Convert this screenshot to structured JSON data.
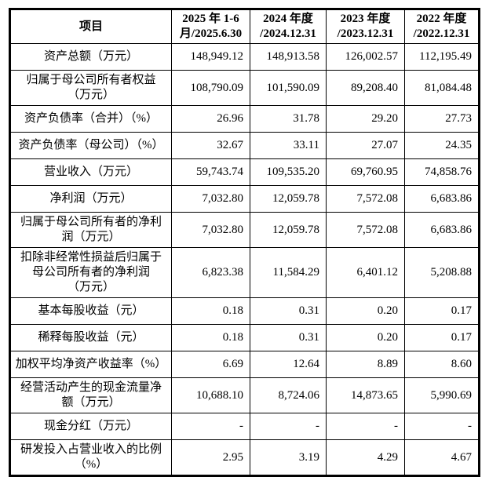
{
  "table": {
    "header": {
      "item_label": "项目",
      "periods": [
        {
          "line1": "2025 年 1-6",
          "line2": "月/2025.6.30"
        },
        {
          "line1": "2024 年度",
          "line2": "/2024.12.31"
        },
        {
          "line1": "2023 年度",
          "line2": "/2023.12.31"
        },
        {
          "line1": "2022 年度",
          "line2": "/2022.12.31"
        }
      ]
    },
    "rows": [
      {
        "item": "资产总额（万元）",
        "values": [
          "148,949.12",
          "148,913.58",
          "126,002.57",
          "112,195.49"
        ]
      },
      {
        "item": "归属于母公司所有者权益\n（万元）",
        "values": [
          "108,790.09",
          "101,590.09",
          "89,208.40",
          "81,084.48"
        ]
      },
      {
        "item": "资产负债率（合并）（%）",
        "values": [
          "26.96",
          "31.78",
          "29.20",
          "27.73"
        ]
      },
      {
        "item": "资产负债率（母公司）（%）",
        "values": [
          "32.67",
          "33.11",
          "27.07",
          "24.35"
        ]
      },
      {
        "item": "营业收入（万元）",
        "values": [
          "59,743.74",
          "109,535.20",
          "69,760.95",
          "74,858.76"
        ]
      },
      {
        "item": "净利润（万元）",
        "values": [
          "7,032.80",
          "12,059.78",
          "7,572.08",
          "6,683.86"
        ]
      },
      {
        "item": "归属于母公司所有者的净利\n润（万元）",
        "values": [
          "7,032.80",
          "12,059.78",
          "7,572.08",
          "6,683.86"
        ]
      },
      {
        "item": "扣除非经常性损益后归属于\n母公司所有者的净利润\n（万元）",
        "values": [
          "6,823.38",
          "11,584.29",
          "6,401.12",
          "5,208.88"
        ]
      },
      {
        "item": "基本每股收益（元）",
        "values": [
          "0.18",
          "0.31",
          "0.20",
          "0.17"
        ]
      },
      {
        "item": "稀释每股收益（元）",
        "values": [
          "0.18",
          "0.31",
          "0.20",
          "0.17"
        ]
      },
      {
        "item": "加权平均净资产收益率（%）",
        "values": [
          "6.69",
          "12.64",
          "8.89",
          "8.60"
        ]
      },
      {
        "item": "经营活动产生的现金流量净\n额（万元）",
        "values": [
          "10,688.10",
          "8,724.06",
          "14,873.65",
          "5,990.69"
        ]
      },
      {
        "item": "现金分红（万元）",
        "values": [
          "-",
          "-",
          "-",
          "-"
        ]
      },
      {
        "item": "研发投入占营业收入的比例\n（%）",
        "values": [
          "2.95",
          "3.19",
          "4.29",
          "4.67"
        ]
      }
    ]
  },
  "colors": {
    "border": "#000000",
    "text": "#000000",
    "background": "#ffffff"
  }
}
